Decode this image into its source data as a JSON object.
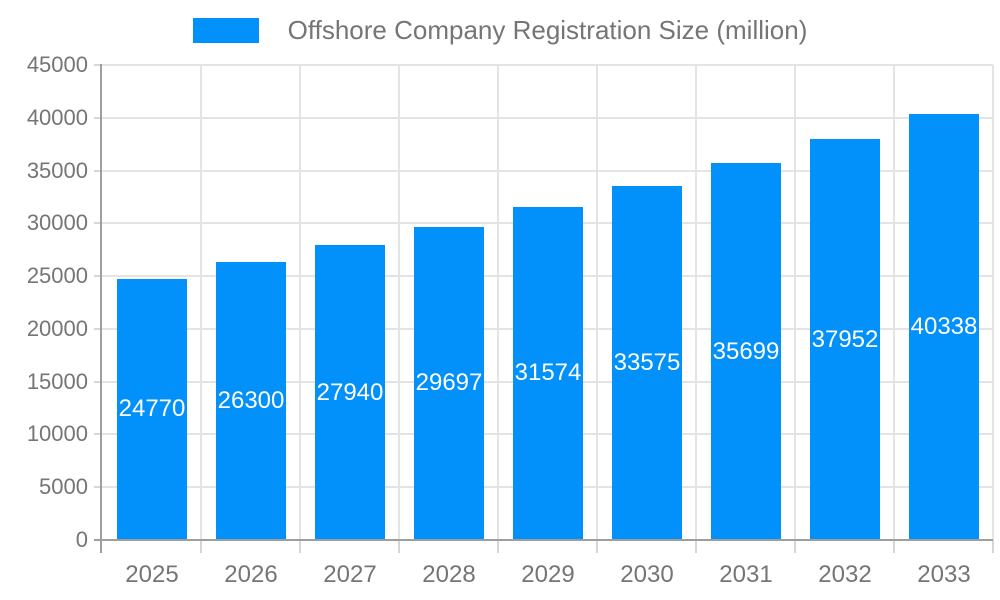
{
  "legend": {
    "label": "Offshore Company Registration Size (million)"
  },
  "colors": {
    "bar": "#0290fa",
    "grid": "#e4e4e4",
    "axis": "#9e9e9e",
    "tick": "#d6d6d6",
    "axis_text": "#757575",
    "bar_label_text": "#ffffff"
  },
  "chart_data": {
    "type": "bar",
    "title": "Offshore Company Registration Size (million)",
    "categories": [
      "2025",
      "2026",
      "2027",
      "2028",
      "2029",
      "2030",
      "2031",
      "2032",
      "2033"
    ],
    "values": [
      24770,
      26300,
      27940,
      29697,
      31574,
      33575,
      35699,
      37952,
      40338
    ],
    "xlabel": "",
    "ylabel": "",
    "ylim": [
      0,
      45000
    ],
    "ytick_step": 5000,
    "yticks": [
      0,
      5000,
      10000,
      15000,
      20000,
      25000,
      30000,
      35000,
      40000,
      45000
    ],
    "grid": true,
    "legend_position": "top",
    "value_labels": "inside-center"
  }
}
